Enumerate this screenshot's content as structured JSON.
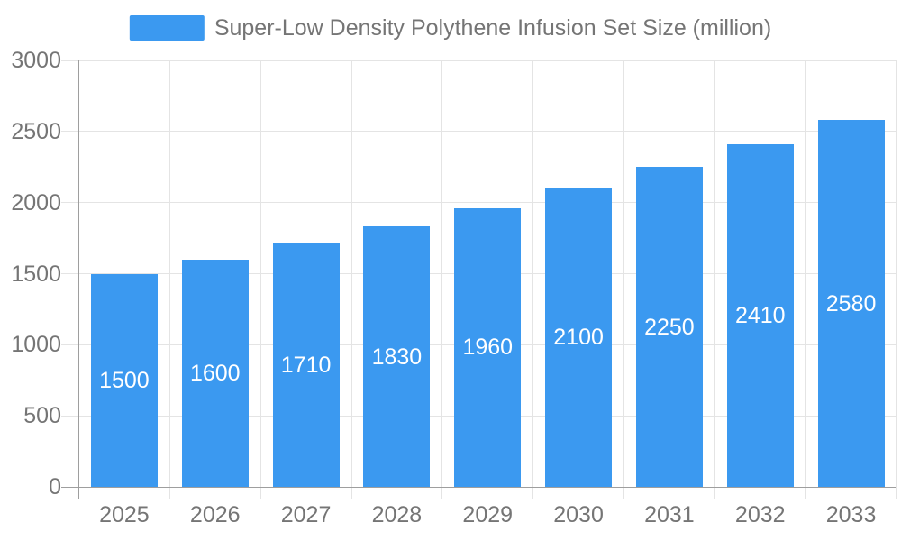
{
  "chart_data": {
    "type": "bar",
    "series_name": "Super-Low Density Polythene Infusion Set Size (million)",
    "categories": [
      "2025",
      "2026",
      "2027",
      "2028",
      "2029",
      "2030",
      "2031",
      "2032",
      "2033"
    ],
    "values": [
      1500,
      1600,
      1710,
      1830,
      1960,
      2100,
      2250,
      2410,
      2580
    ],
    "xlabel": "",
    "ylabel": "",
    "ylim": [
      0,
      3000
    ],
    "yticks": [
      0,
      500,
      1000,
      1500,
      2000,
      2500,
      3000
    ],
    "grid": true,
    "legend_position": "top",
    "bar_value_labels_inside": true
  },
  "colors": {
    "bar": "#3b99f0",
    "bar_value_text": "#ffffff",
    "axis_line": "#9e9e9e",
    "grid_line": "#e4e4e4",
    "tick_text": "#757575",
    "background": "#ffffff"
  }
}
